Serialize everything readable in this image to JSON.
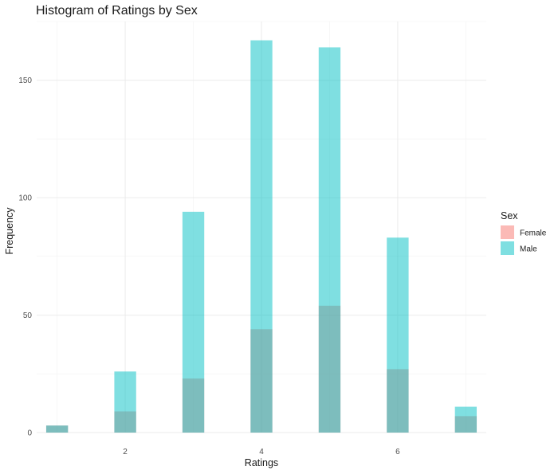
{
  "chart_data": {
    "type": "bar",
    "title": "Histogram of Ratings by Sex",
    "xlabel": "Ratings",
    "ylabel": "Frequency",
    "x": [
      1,
      2,
      3,
      4,
      5,
      6,
      7
    ],
    "series": [
      {
        "name": "Female",
        "color": "#F8766D",
        "values": [
          3,
          9,
          23,
          44,
          54,
          27,
          7
        ]
      },
      {
        "name": "Male",
        "color": "#00BFC4",
        "values": [
          3,
          26,
          94,
          167,
          164,
          83,
          11
        ]
      }
    ],
    "xlim": [
      0.7,
      7.3
    ],
    "ylim": [
      0,
      175
    ],
    "x_ticks": [
      2,
      4,
      6
    ],
    "y_ticks": [
      0,
      50,
      100,
      150
    ],
    "grid": true,
    "legend": {
      "title": "Sex",
      "position": "right",
      "entries": [
        "Female",
        "Male"
      ]
    }
  }
}
